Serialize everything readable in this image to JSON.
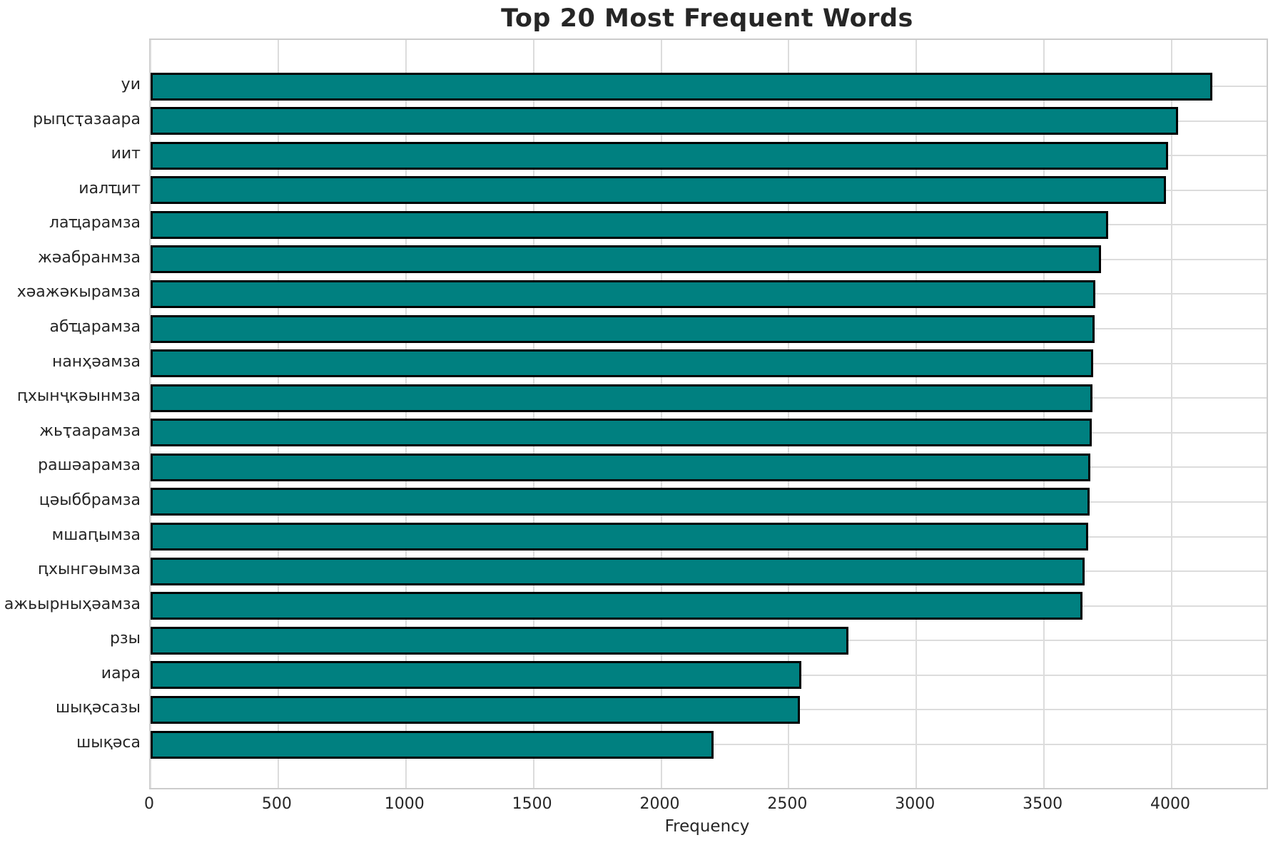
{
  "chart_data": {
    "type": "bar",
    "orientation": "horizontal",
    "title": "Top 20 Most Frequent Words",
    "xlabel": "Frequency",
    "ylabel": "",
    "categories": [
      "уи",
      "рыԥсҭазаара",
      "иит",
      "иалҵит",
      "лаҵарамза",
      "жәабранмза",
      "хәажәкырамза",
      "абҵарамза",
      "нанҳәамза",
      "ԥхынҷкәынмза",
      "жьҭаарамза",
      "рашәарамза",
      "цәыббрамза",
      "мшаԥымза",
      "ԥхынгәымза",
      "ажьырныҳәамза",
      "рзы",
      "иара",
      "шықәсазы",
      "шықәса"
    ],
    "values": [
      4160,
      4025,
      3985,
      3978,
      3750,
      3722,
      3700,
      3698,
      3693,
      3690,
      3686,
      3682,
      3678,
      3672,
      3658,
      3650,
      2734,
      2550,
      2543,
      2205
    ],
    "xticks": [
      0,
      500,
      1000,
      1500,
      2000,
      2500,
      3000,
      3500,
      4000
    ],
    "xlim": [
      0,
      4372
    ],
    "grid": true,
    "legend": false,
    "colors": {
      "bar_fill": "#008080",
      "bar_edge": "#000000",
      "grid": "#dcdcdc",
      "spine": "#cccccc",
      "text": "#262626",
      "background": "#ffffff"
    }
  }
}
